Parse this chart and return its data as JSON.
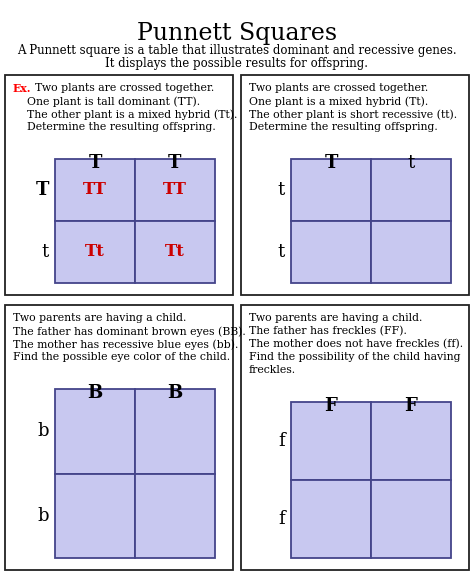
{
  "title": "Punnett Squares",
  "subtitle_line1": "A Punnett square is a table that illustrates dominant and recessive genes.",
  "subtitle_line2": "It displays the possible results for offspring.",
  "bg_color": "#ffffff",
  "cell_color": "#c8c8f0",
  "border_color": "#44448a",
  "box_border_color": "#222222",
  "panels": [
    {
      "col": 0,
      "row": 0,
      "has_ex": true,
      "text_lines": [
        "Two plants are crossed together.",
        "One plant is tall dominant (TT).",
        "The other plant is a mixed hybrid (Tt).",
        "Determine the resulting offspring."
      ],
      "col_labels": [
        "T",
        "T"
      ],
      "row_labels": [
        "T",
        "t"
      ],
      "col_label_bold": [
        true,
        true
      ],
      "row_label_bold": [
        true,
        false
      ],
      "cells": [
        [
          "TT",
          "TT"
        ],
        [
          "Tt",
          "Tt"
        ]
      ],
      "cell_colors": [
        [
          "#cc0000",
          "#cc0000"
        ],
        [
          "#cc0000",
          "#cc0000"
        ]
      ],
      "cell_bold": [
        [
          true,
          true
        ],
        [
          true,
          true
        ]
      ]
    },
    {
      "col": 1,
      "row": 0,
      "has_ex": false,
      "text_lines": [
        "Two plants are crossed together.",
        "One plant is a mixed hybrid (Tt).",
        "The other plant is short recessive (tt).",
        "Determine the resulting offspring."
      ],
      "col_labels": [
        "T",
        "t"
      ],
      "row_labels": [
        "t",
        "t"
      ],
      "col_label_bold": [
        true,
        false
      ],
      "row_label_bold": [
        false,
        false
      ],
      "cells": [
        [
          "",
          ""
        ],
        [
          "",
          ""
        ]
      ],
      "cell_colors": [
        [
          "black",
          "black"
        ],
        [
          "black",
          "black"
        ]
      ],
      "cell_bold": [
        [
          false,
          false
        ],
        [
          false,
          false
        ]
      ]
    },
    {
      "col": 0,
      "row": 1,
      "has_ex": false,
      "text_lines": [
        "Two parents are having a child.",
        "The father has dominant brown eyes (BB).",
        "The mother has recessive blue eyes (bb).",
        "Find the possible eye color of the child."
      ],
      "col_labels": [
        "B",
        "B"
      ],
      "row_labels": [
        "b",
        "b"
      ],
      "col_label_bold": [
        true,
        true
      ],
      "row_label_bold": [
        false,
        false
      ],
      "cells": [
        [
          "",
          ""
        ],
        [
          "",
          ""
        ]
      ],
      "cell_colors": [
        [
          "black",
          "black"
        ],
        [
          "black",
          "black"
        ]
      ],
      "cell_bold": [
        [
          false,
          false
        ],
        [
          false,
          false
        ]
      ]
    },
    {
      "col": 1,
      "row": 1,
      "has_ex": false,
      "text_lines": [
        "Two parents are having a child.",
        "The father has freckles (FF).",
        "The mother does not have freckles (ff).",
        "Find the possibility of the child having",
        "freckles."
      ],
      "col_labels": [
        "F",
        "F"
      ],
      "row_labels": [
        "f",
        "f"
      ],
      "col_label_bold": [
        true,
        true
      ],
      "row_label_bold": [
        false,
        false
      ],
      "cells": [
        [
          "",
          ""
        ],
        [
          "",
          ""
        ]
      ],
      "cell_colors": [
        [
          "black",
          "black"
        ],
        [
          "black",
          "black"
        ]
      ],
      "cell_bold": [
        [
          false,
          false
        ],
        [
          false,
          false
        ]
      ]
    }
  ],
  "title_fontsize": 17,
  "subtitle_fontsize": 8.5,
  "text_fontsize": 7.8,
  "label_fontsize": 13,
  "cell_fontsize": 12
}
